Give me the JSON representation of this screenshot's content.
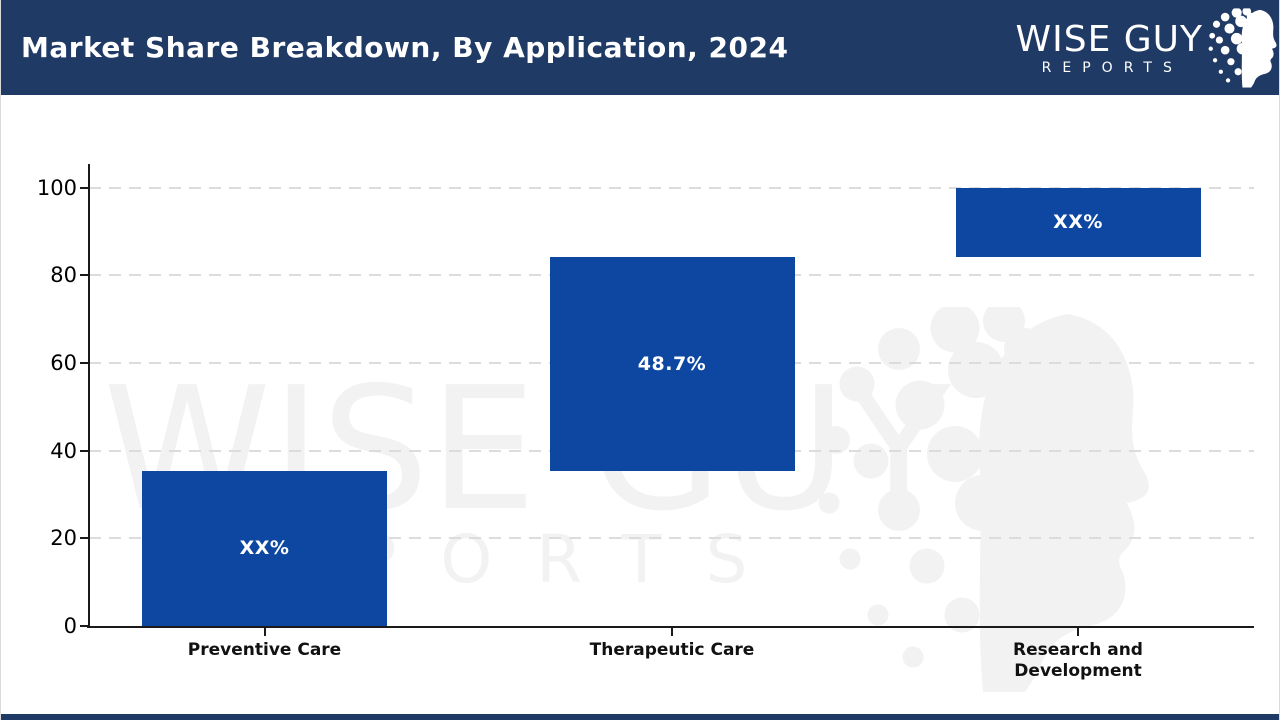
{
  "header": {
    "title": "Market Share Breakdown, By Application, 2024",
    "logo": {
      "name": "Wise Guy Reports",
      "line1": "WISE GUY",
      "line2": "REPORTS"
    }
  },
  "watermark": {
    "line1": "WISE GUY",
    "line2": "REPORTS"
  },
  "chart_data": {
    "type": "bar",
    "subtype": "stacked-waterfall",
    "title": "Market Share Breakdown, By Application, 2024",
    "categories": [
      "Preventive Care",
      "Therapeutic Care",
      "Research and Development"
    ],
    "segments": [
      {
        "category": "Preventive Care",
        "label": "XX%",
        "start": 0,
        "end": 35.4
      },
      {
        "category": "Therapeutic Care",
        "label": "48.7%",
        "start": 35.4,
        "end": 84.1,
        "value": 48.7
      },
      {
        "category": "Research and Development",
        "label": "XX%",
        "start": 84.1,
        "end": 100
      }
    ],
    "xlabel": "",
    "ylabel": "",
    "yticks": [
      0,
      20,
      40,
      60,
      80,
      100
    ],
    "ylim": [
      0,
      105
    ],
    "grid": "horizontal-dashed",
    "legend_position": "none",
    "bar_color": "#0d47a1"
  },
  "colors": {
    "header_bg": "#203a66",
    "footer_bg": "#203a66",
    "bar": "#0d47a1",
    "bar_label": "#ffffff",
    "watermark": "#f2f2f3",
    "grid": "#dcdcdc",
    "axis": "#1a1a1a",
    "title_text": "#ffffff"
  }
}
